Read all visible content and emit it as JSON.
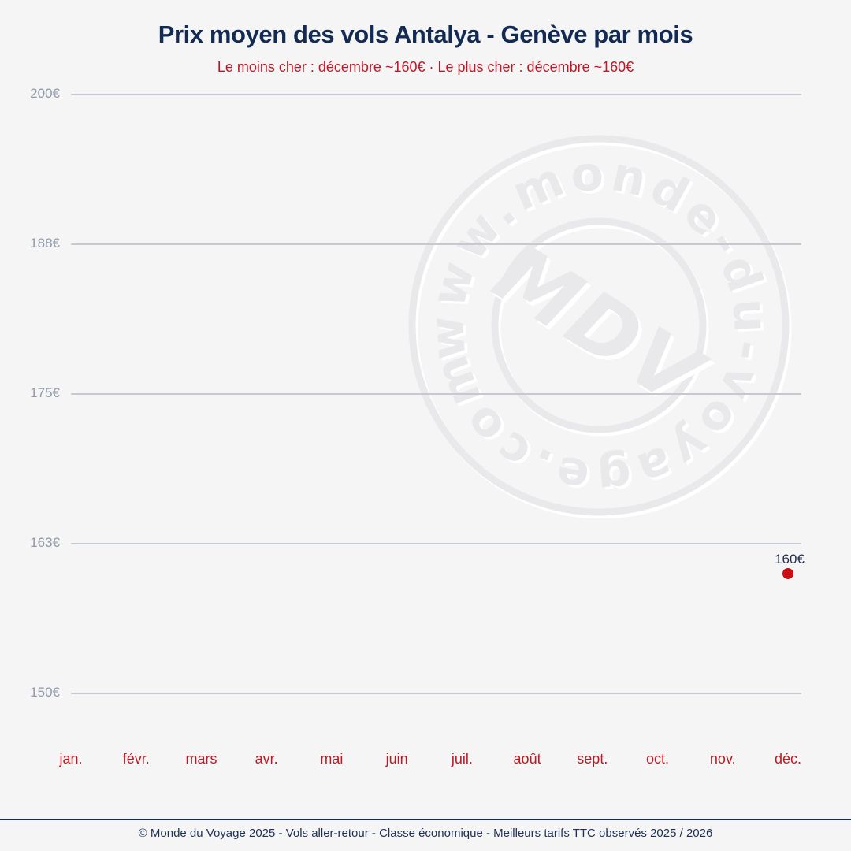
{
  "title": "Prix moyen des vols Antalya - Genève par mois",
  "subtitle": "Le moins cher : décembre ~160€ · Le plus cher : décembre ~160€",
  "watermark": {
    "ring_text": "www.monde-du-voyage.com ·",
    "center_text": "MDV"
  },
  "footer": {
    "text": "© Monde du Voyage 2025 - Vols aller-retour - Classe économique - Meilleurs tarifs TTC observés 2025 / 2026"
  },
  "colors": {
    "background": "#f5f5f6",
    "title_navy": "#132a52",
    "subtitle_red": "#c41425",
    "month_red": "#bb1a22",
    "gridline": "#c5c9d2",
    "ytick_gray": "#9099a8",
    "dot_red": "#cb0d17",
    "point_label": "#222f49",
    "footer_navy": "#1d3156",
    "watermark_gray": "#e9e9ec"
  },
  "chart_data": {
    "type": "scatter",
    "title": "Prix moyen des vols Antalya - Genève par mois",
    "categories": [
      "jan.",
      "févr.",
      "mars",
      "avr.",
      "mai",
      "juin",
      "juil.",
      "août",
      "sept.",
      "oct.",
      "nov.",
      "déc."
    ],
    "series": [
      {
        "name": "Prix moyen",
        "values": [
          null,
          null,
          null,
          null,
          null,
          null,
          null,
          null,
          null,
          null,
          null,
          160
        ]
      }
    ],
    "point_labels": [
      "",
      "",
      "",
      "",
      "",
      "",
      "",
      "",
      "",
      "",
      "",
      "160€"
    ],
    "yticks": {
      "labels": [
        "200€",
        "188€",
        "175€",
        "163€",
        "150€"
      ],
      "values": [
        200,
        187.5,
        175,
        162.5,
        150
      ]
    },
    "ylim": [
      150,
      200
    ],
    "xlabel": "",
    "ylabel": "",
    "grid": true,
    "legend": false
  }
}
